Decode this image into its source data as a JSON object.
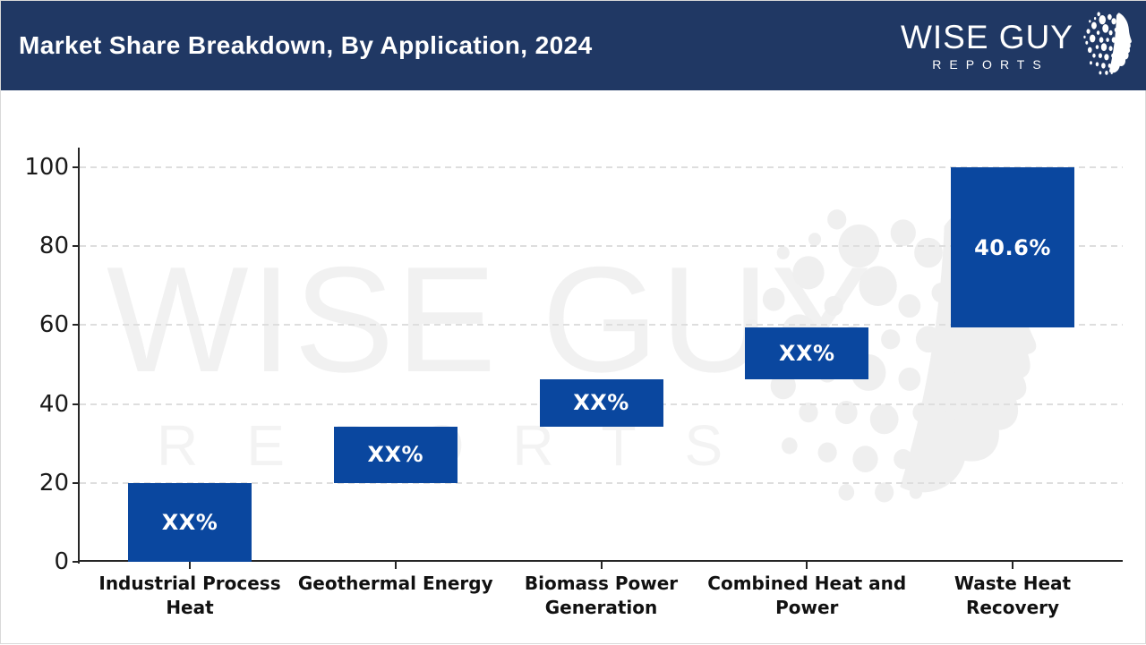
{
  "header": {
    "title": "Market Share Breakdown, By Application, 2024",
    "background_color": "#203864",
    "logo": {
      "line1": "WISE GUY",
      "line2": "REPORTS",
      "icon": "dotted-face-profile-icon"
    }
  },
  "watermark": {
    "line1": "WISE GUY",
    "line2": "REPORTS",
    "icon": "dotted-face-profile-icon"
  },
  "chart_data": {
    "type": "bar",
    "subtype": "floating-waterfall",
    "title": "Market Share Breakdown, By Application, 2024",
    "categories": [
      "Industrial Process Heat",
      "Geothermal Energy",
      "Biomass Power Generation",
      "Combined Heat and Power",
      "Waste Heat Recovery"
    ],
    "category_label_lines": [
      [
        "Industrial Process",
        "Heat"
      ],
      [
        "Geothermal Energy"
      ],
      [
        "Biomass Power",
        "Generation"
      ],
      [
        "Combined Heat and",
        "Power"
      ],
      [
        "Waste Heat",
        "Recovery"
      ]
    ],
    "segments": [
      [
        0,
        20
      ],
      [
        20,
        34.2
      ],
      [
        34.2,
        46.3
      ],
      [
        46.3,
        59.4
      ],
      [
        59.4,
        100
      ]
    ],
    "values": [
      20.0,
      14.2,
      12.1,
      13.1,
      40.6
    ],
    "bar_labels": [
      "XX%",
      "XX%",
      "XX%",
      "XX%",
      "40.6%"
    ],
    "yticks": [
      0,
      20,
      40,
      60,
      80,
      100
    ],
    "ylim": [
      0,
      105
    ],
    "xlabel": "",
    "ylabel": "",
    "grid": "horizontal-dashed",
    "legend": "none",
    "bar_color": "#0a479f",
    "bar_label_color": "#ffffff",
    "axis_color": "#262626",
    "gridline_color": "#dedede"
  }
}
